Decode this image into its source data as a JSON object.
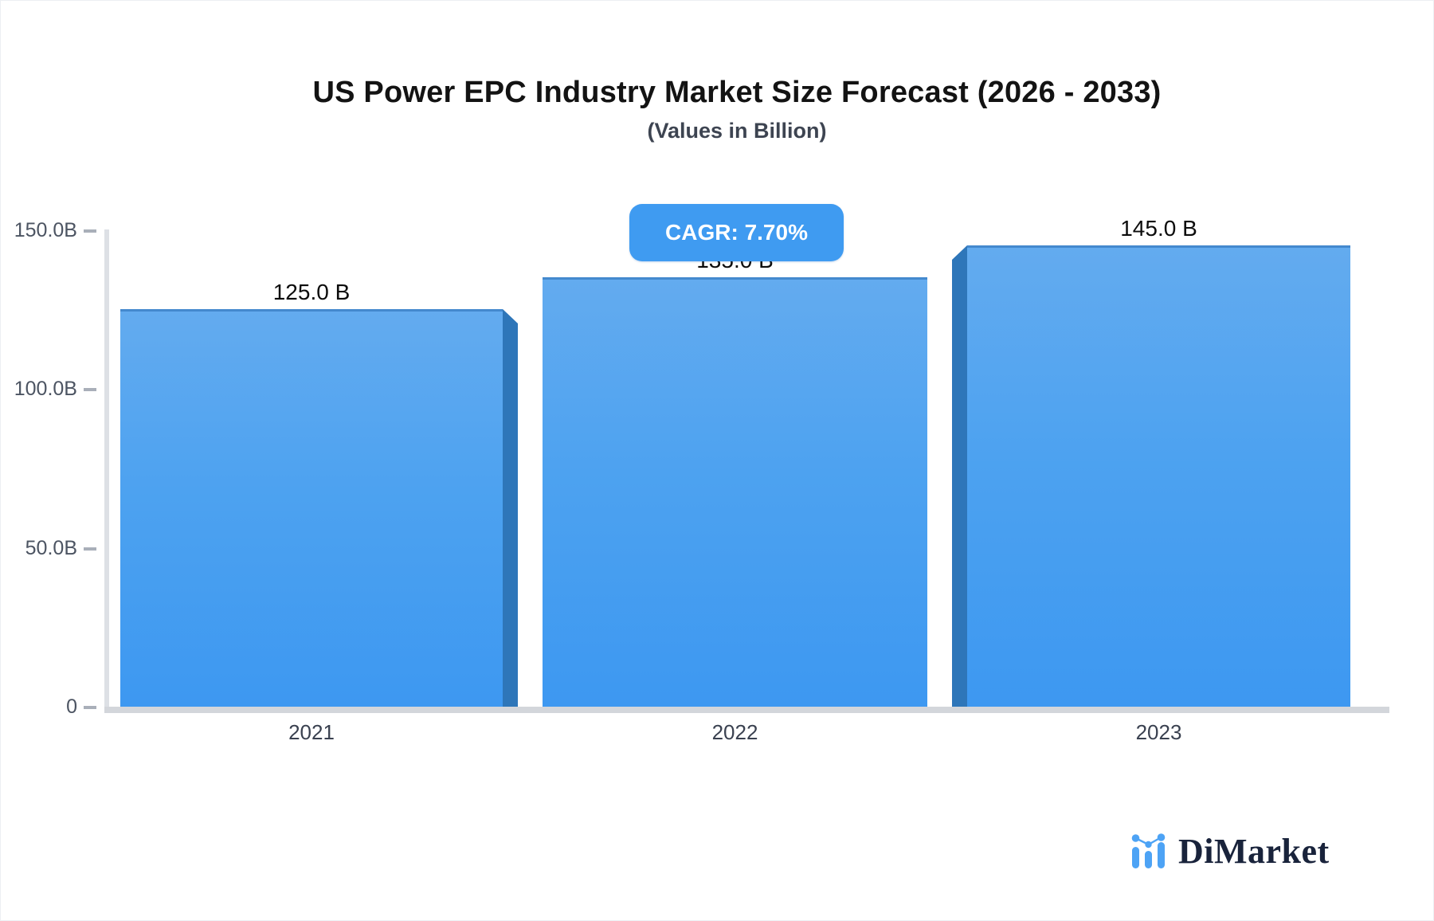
{
  "header": {
    "title": "US Power EPC Industry Market Size Forecast (2026 - 2033)",
    "subtitle": "(Values in Billion)"
  },
  "annotations": {
    "cagr_label": "CAGR: 7.70%"
  },
  "brand": {
    "name": "DiMarket",
    "icon": "dimarket-bars-icon"
  },
  "colors": {
    "bar_top": "#63abef",
    "bar_bottom": "#3d98f1",
    "bar_side": "#2e76b9",
    "bar_top_border": "#4489ce",
    "badge": "#3f9bf1",
    "axis": "#d3d6db",
    "tick": "#a9afb9",
    "brand_navy": "#19233b",
    "brand_blue": "#4da3f5"
  },
  "chart_data": {
    "type": "bar",
    "title": "US Power EPC Industry Market Size Forecast (2026 - 2033)",
    "subtitle": "(Values in Billion)",
    "categories": [
      "2021",
      "2022",
      "2023"
    ],
    "values": [
      125.0,
      135.0,
      145.0
    ],
    "value_labels": [
      "125.0 B",
      "135.0 B",
      "145.0 B"
    ],
    "unit": "Billion",
    "xlabel": "",
    "ylabel": "",
    "ylim": [
      0,
      150
    ],
    "yticks": [
      {
        "value": 0,
        "label": "0"
      },
      {
        "value": 50,
        "label": "50.0B"
      },
      {
        "value": 100,
        "label": "100.0B"
      },
      {
        "value": 150,
        "label": "150.0B"
      }
    ],
    "grid": false,
    "legend": "none",
    "bar_style": "3d-extruded",
    "cagr": "7.70%"
  }
}
